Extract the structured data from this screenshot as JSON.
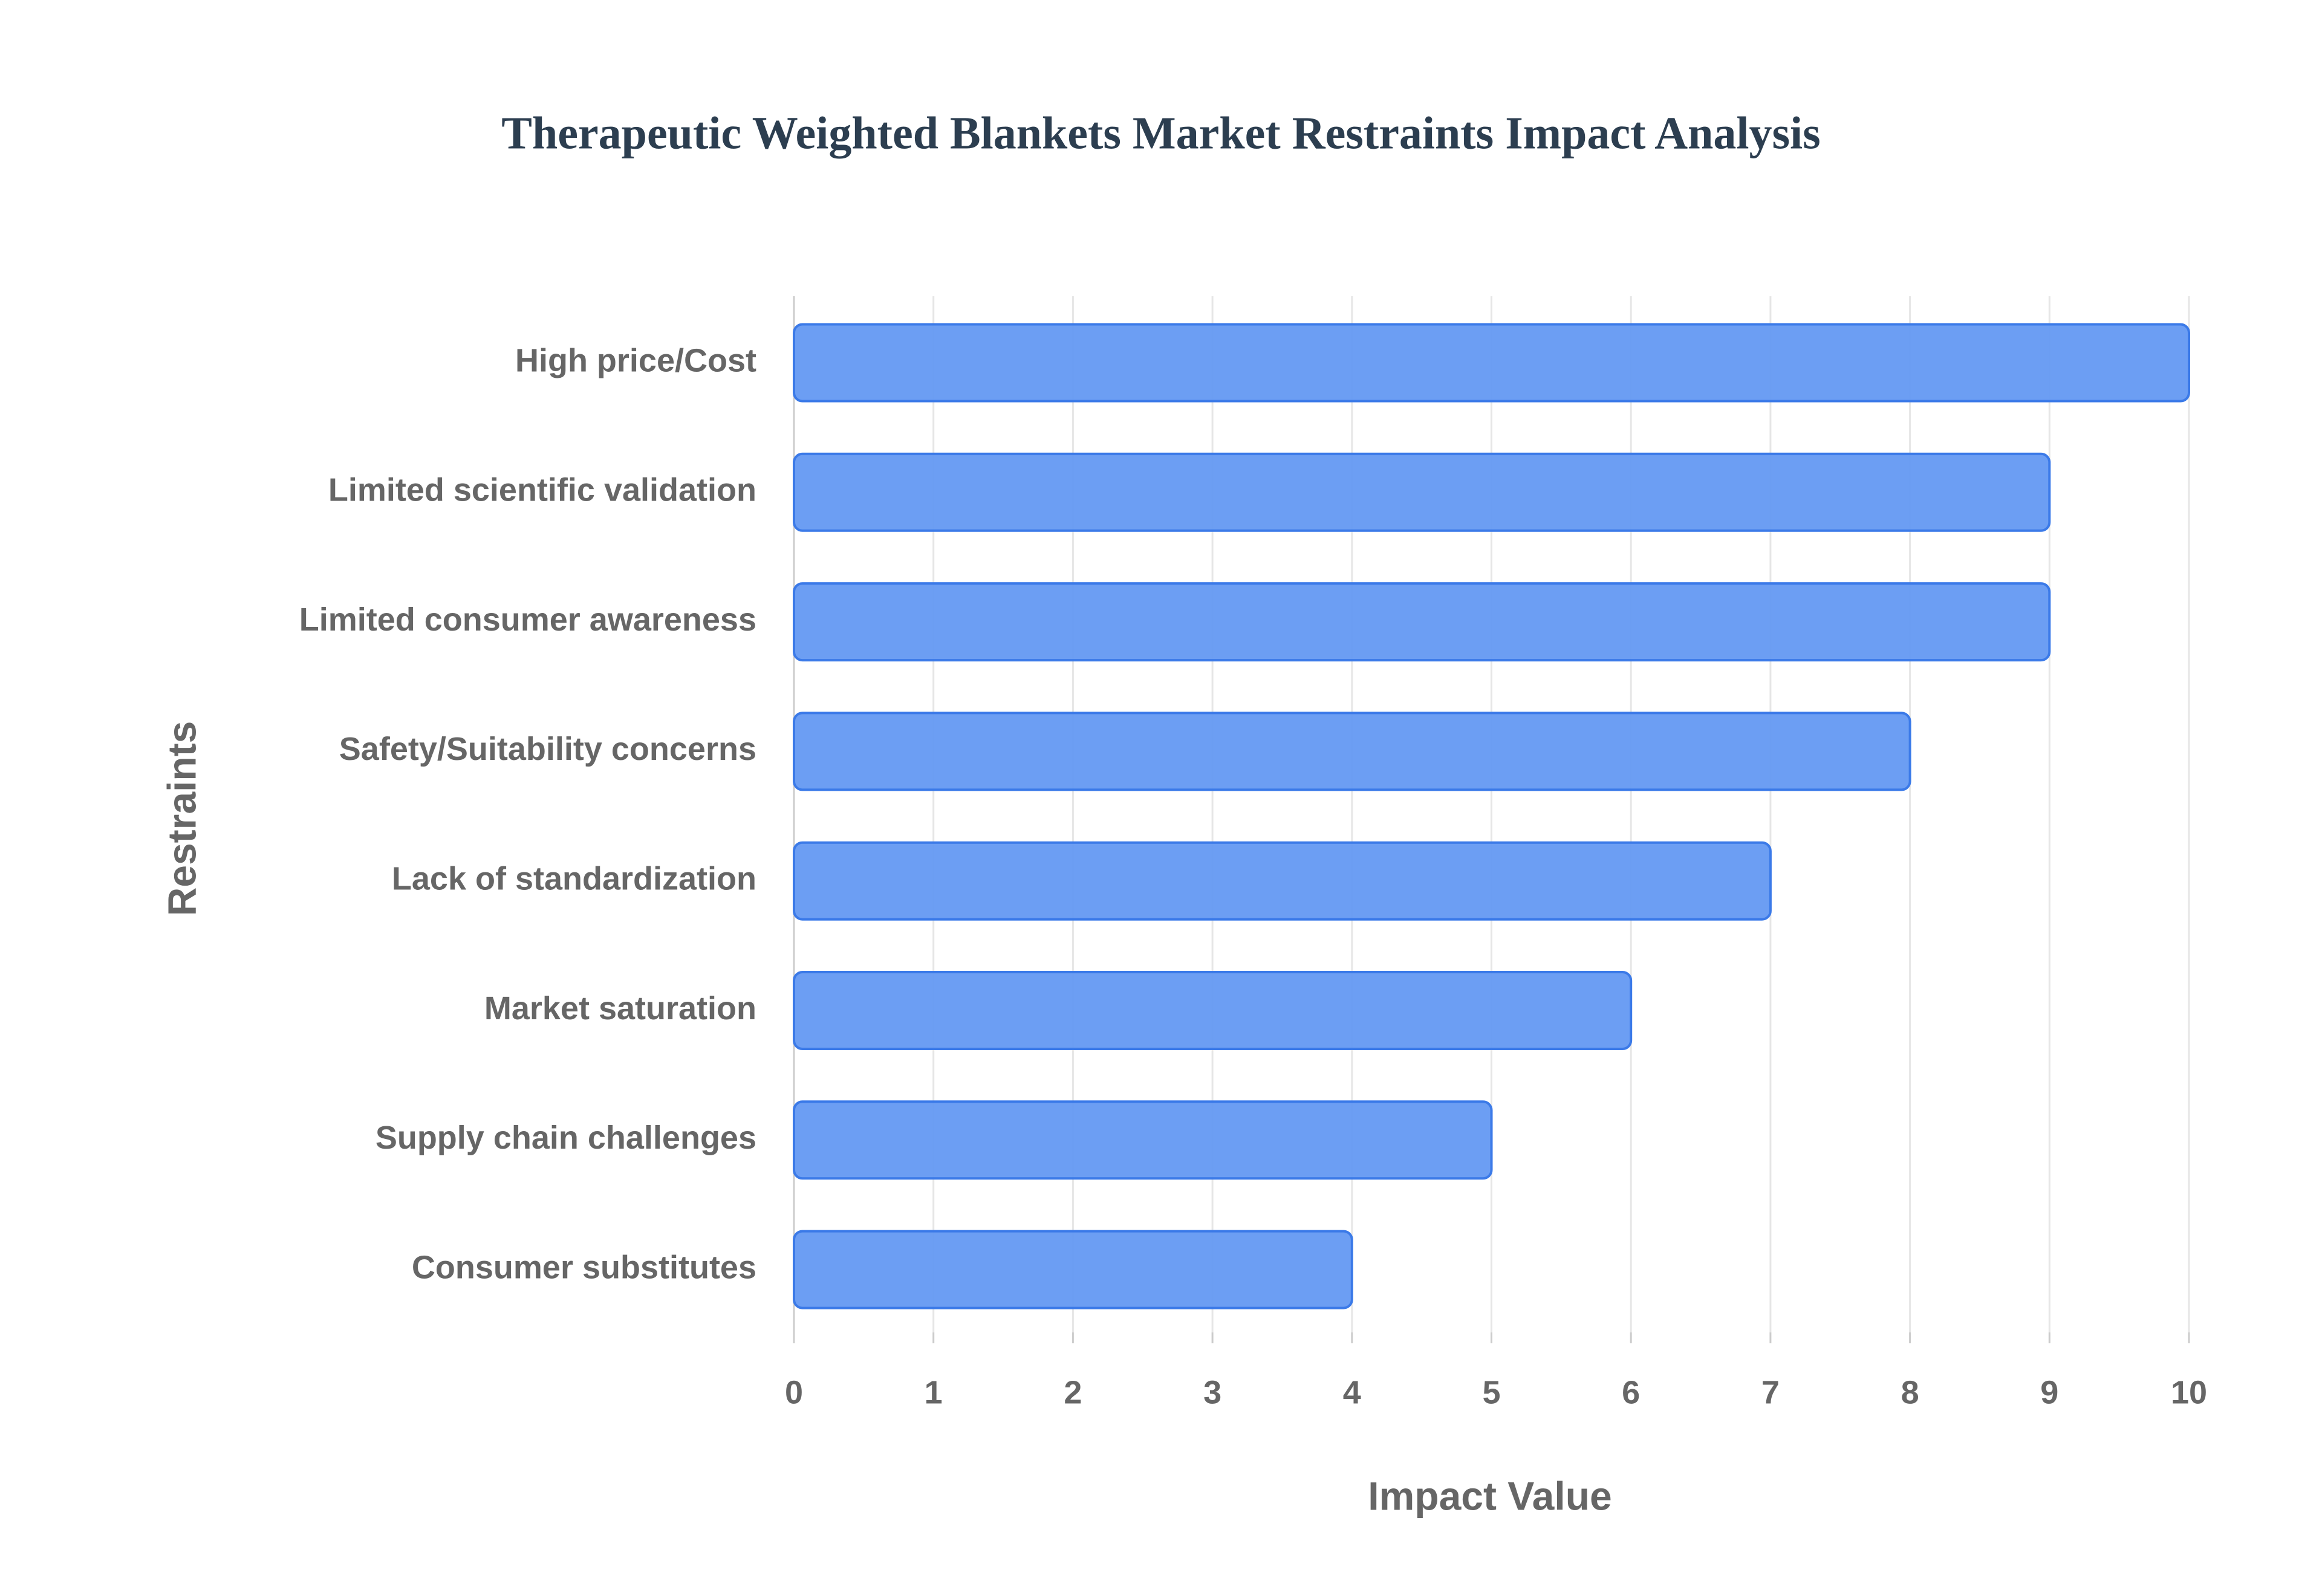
{
  "chart_data": {
    "type": "bar",
    "orientation": "horizontal",
    "title": "Therapeutic Weighted Blankets Market Restraints Impact Analysis",
    "xlabel": "Impact Value",
    "ylabel": "Restraints",
    "categories": [
      "High price/Cost",
      "Limited scientific validation",
      "Limited consumer awareness",
      "Safety/Suitability concerns",
      "Lack of standardization",
      "Market saturation",
      "Supply chain challenges",
      "Consumer substitutes"
    ],
    "values": [
      10,
      9,
      9,
      8,
      7,
      6,
      5,
      4
    ],
    "color": "#6499f2",
    "xlim": [
      0,
      10
    ],
    "xticks": [
      0,
      1,
      2,
      3,
      4,
      5,
      6,
      7,
      8,
      9,
      10
    ],
    "grid": true
  }
}
